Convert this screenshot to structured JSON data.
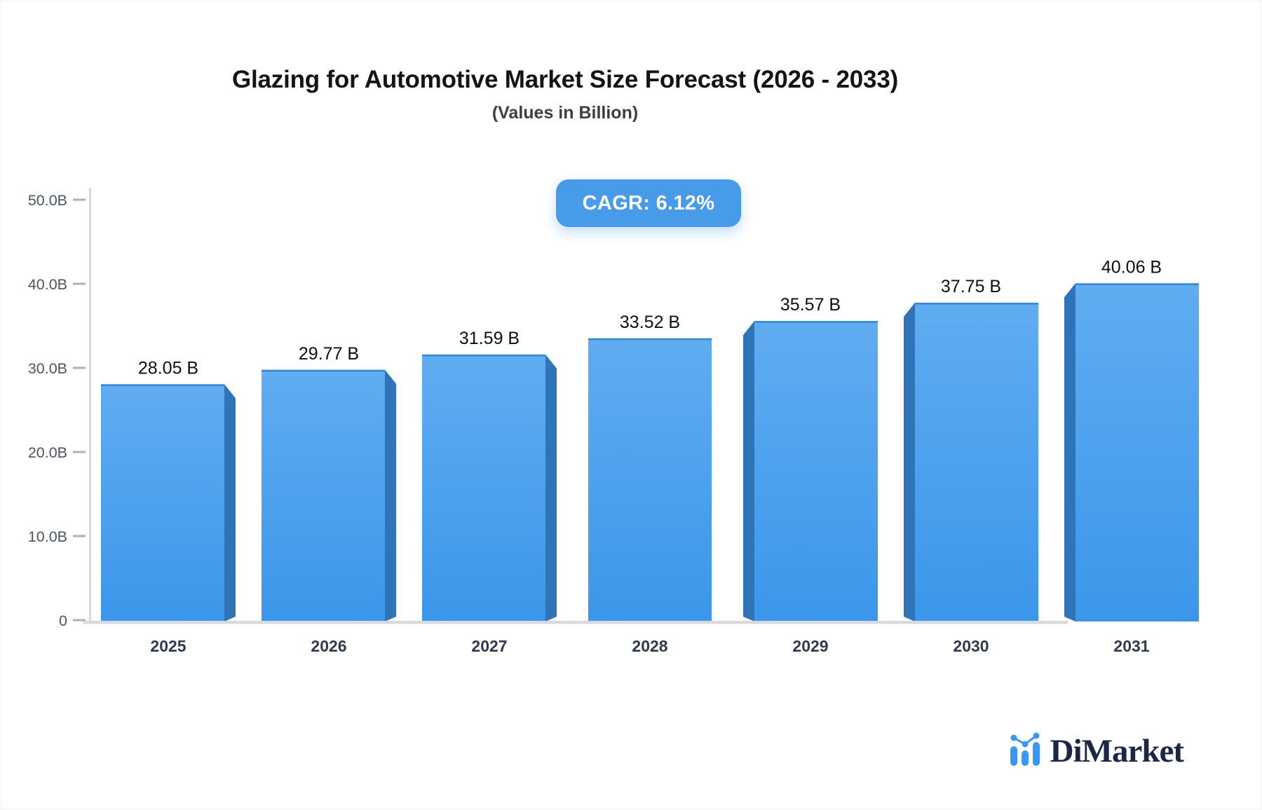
{
  "chart_data": {
    "type": "bar",
    "title": "Glazing for Automotive Market Size Forecast (2026 - 2033)",
    "subtitle": "(Values in Billion)",
    "cagr_badge": "CAGR: 6.12%",
    "categories": [
      "2025",
      "2026",
      "2027",
      "2028",
      "2029",
      "2030",
      "2031"
    ],
    "values": [
      28.05,
      29.77,
      31.59,
      33.52,
      35.57,
      37.75,
      40.06
    ],
    "value_labels": [
      "28.05 B",
      "29.77 B",
      "31.59 B",
      "33.52 B",
      "35.57 B",
      "37.75 B",
      "40.06 B"
    ],
    "xlabel": "",
    "ylabel": "",
    "ylim": [
      0,
      50
    ],
    "y_ticks": [
      {
        "value": 50,
        "label": "50.0B"
      },
      {
        "value": 40,
        "label": "40.0B"
      },
      {
        "value": 30,
        "label": "30.0B"
      },
      {
        "value": 20,
        "label": "20.0B"
      },
      {
        "value": 10,
        "label": "10.0B"
      },
      {
        "value": 0,
        "label": "0"
      }
    ],
    "grid": false,
    "legend": false,
    "bar_style": "3d-extruded"
  },
  "logo": {
    "text": "DiMarket",
    "icon": "mini-bar-chart-icon"
  },
  "colors": {
    "bar_face_top": "#60ACF1",
    "bar_face_bottom": "#3C96EA",
    "bar_side": "#2E74B6",
    "bar_top_edge": "#2F80CF",
    "badge_bg": "#479BE8",
    "badge_text": "#FFFFFF",
    "axis_line": "#D6D9DD",
    "tick": "#A9B1BC",
    "y_label": "#4A5462",
    "x_label": "#2F3A4E",
    "value_label": "#0D0F13",
    "title": "#121417",
    "logo_text": "#1C2745",
    "logo_icon": "#3B97F5"
  }
}
